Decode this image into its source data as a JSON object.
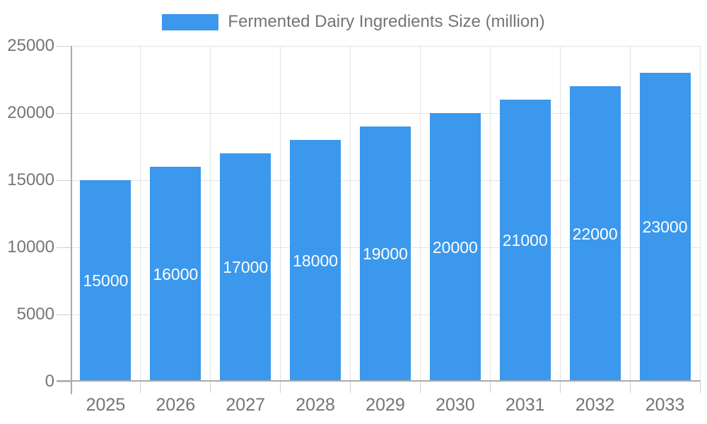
{
  "legend": {
    "label": "Fermented Dairy Ingredients Size (million)"
  },
  "colors": {
    "bar_blue": "#3B98EC",
    "axis_text_gray": "#757575",
    "gridline_gray": "#E3E3E3",
    "axis_line_gray": "#ABABAB",
    "bar_label_white": "#FFFFFF"
  },
  "chart_data": {
    "type": "bar",
    "title": "Fermented Dairy Ingredients Size (million)",
    "categories": [
      "2025",
      "2026",
      "2027",
      "2028",
      "2029",
      "2030",
      "2031",
      "2032",
      "2033"
    ],
    "values": [
      15000,
      16000,
      17000,
      18000,
      19000,
      20000,
      21000,
      22000,
      23000
    ],
    "bar_labels": [
      "15000",
      "16000",
      "17000",
      "18000",
      "19000",
      "20000",
      "21000",
      "22000",
      "23000"
    ],
    "yticks": [
      0,
      5000,
      10000,
      15000,
      20000,
      25000
    ],
    "ylim": [
      0,
      25000
    ],
    "xlabel": "",
    "ylabel": "",
    "grid": true,
    "legend_position": "top",
    "bar_color": "#3B98EC",
    "value_label_position": "center-inside"
  }
}
